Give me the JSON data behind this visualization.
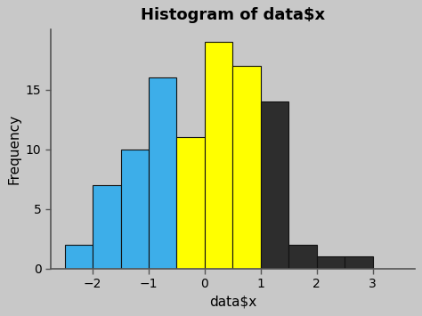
{
  "title": "Histogram of data$x",
  "xlabel": "data$x",
  "ylabel": "Frequency",
  "background_color": "#c8c8c8",
  "bar_edges": [
    -2.5,
    -2.0,
    -1.5,
    -1.0,
    -0.5,
    0.0,
    0.5,
    1.0,
    1.5,
    2.0,
    2.5,
    3.0,
    3.5
  ],
  "bar_heights": [
    2,
    7,
    10,
    16,
    11,
    19,
    17,
    14,
    2,
    1,
    1,
    0
  ],
  "bar_colors": [
    "#3daee9",
    "#3daee9",
    "#3daee9",
    "#3daee9",
    "#ffff00",
    "#ffff00",
    "#ffff00",
    "#2d2d2d",
    "#2d2d2d",
    "#2d2d2d",
    "#2d2d2d",
    "#2d2d2d"
  ],
  "bar_edgecolor": "#111111",
  "bar_linewidth": 0.8,
  "ylim": [
    0,
    20
  ],
  "yticks": [
    0,
    5,
    10,
    15
  ],
  "xticks": [
    -2,
    -1,
    0,
    1,
    2,
    3
  ],
  "xlim": [
    -2.75,
    3.75
  ],
  "title_fontsize": 13,
  "label_fontsize": 11,
  "tick_fontsize": 10,
  "spine_color": "#555555"
}
